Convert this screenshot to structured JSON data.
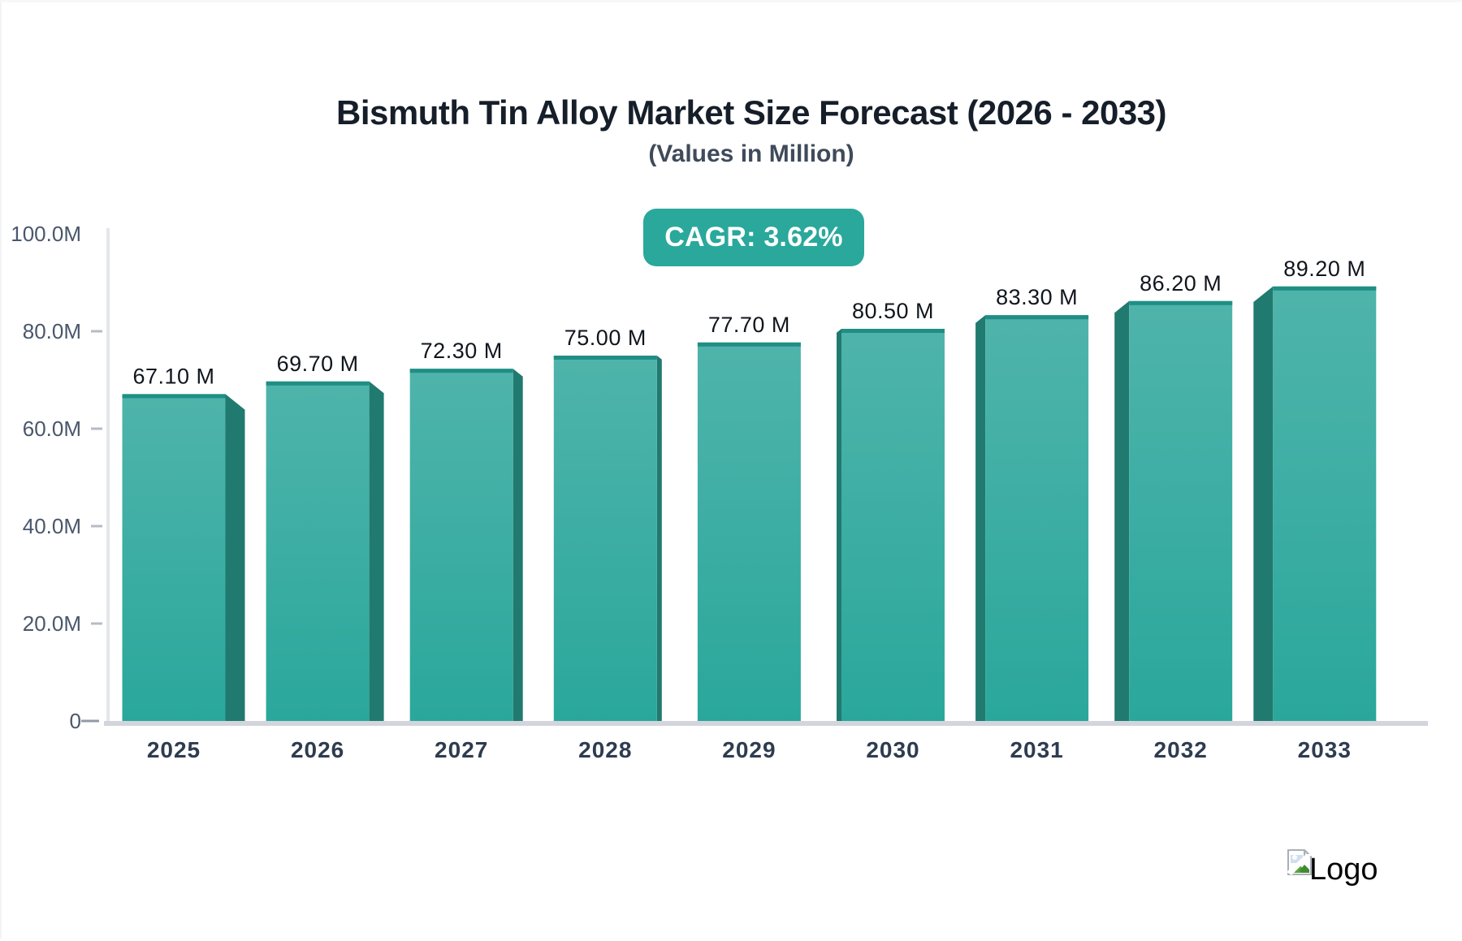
{
  "header": {
    "title": "Bismuth Tin Alloy Market Size Forecast (2026 - 2033)",
    "subtitle": "(Values in Million)",
    "cagr_label": "CAGR: 3.62%"
  },
  "footer": {
    "logo_alt_text": "Logo"
  },
  "chart_data": {
    "type": "bar",
    "title": "Bismuth Tin Alloy Market Size Forecast (2026 - 2033)",
    "subtitle": "(Values in Million)",
    "annotation": "CAGR: 3.62%",
    "units": "Million",
    "categories": [
      "2025",
      "2026",
      "2027",
      "2028",
      "2029",
      "2030",
      "2031",
      "2032",
      "2033"
    ],
    "values": [
      67.1,
      69.7,
      72.3,
      75.0,
      77.7,
      80.5,
      83.3,
      86.2,
      89.2
    ],
    "value_labels": [
      "67.10 M",
      "69.70 M",
      "72.30 M",
      "75.00 M",
      "77.70 M",
      "80.50 M",
      "83.30 M",
      "86.20 M",
      "89.20 M"
    ],
    "xlabel": "",
    "ylabel": "",
    "ylim_millions": [
      0,
      100
    ],
    "grid": false,
    "legend": "none",
    "y_axis": {
      "tick_labels": [
        "100.0M",
        "80.0M",
        "60.0M",
        "40.0M",
        "20.0M",
        "0"
      ],
      "tick_values": [
        100,
        80,
        60,
        40,
        20,
        0
      ]
    },
    "colors": {
      "accent": "#2aa89c",
      "bar_face_top": "#4fb4ab",
      "bar_face_bottom": "#2aa79b",
      "bar_top_edge": "#208e84",
      "bar_side": "#217a6f",
      "axis_line": "#e3e6ea",
      "baseline": "#d2d6dc",
      "tick": "#b6bcc6",
      "zero_tick": "#939aa6",
      "y_label": "#4a576c",
      "x_label": "#2e3c50",
      "value_label": "#10161d",
      "title": "#151e29",
      "subtitle": "#3f4a5a",
      "badge_text": "#ffffff"
    }
  }
}
